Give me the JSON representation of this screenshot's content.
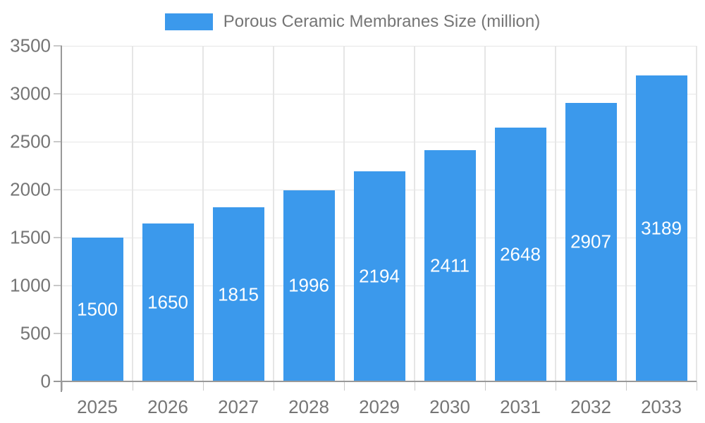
{
  "chart_data": {
    "type": "bar",
    "title": "Porous Ceramic Membranes Size (million)",
    "legend": {
      "label": "Porous Ceramic Membranes Size (million)",
      "position": "top"
    },
    "categories": [
      "2025",
      "2026",
      "2027",
      "2028",
      "2029",
      "2030",
      "2031",
      "2032",
      "2033"
    ],
    "values": [
      1500,
      1650,
      1815,
      1996,
      2194,
      2411,
      2648,
      2907,
      3189
    ],
    "value_labels": [
      "1500",
      "1650",
      "1815",
      "1996",
      "2194",
      "2411",
      "2648",
      "2907",
      "3189"
    ],
    "xlabel": "",
    "ylabel": "",
    "ylim": [
      0,
      3500
    ],
    "y_ticks": [
      0,
      500,
      1000,
      1500,
      2000,
      2500,
      3000,
      3500
    ],
    "grid": true,
    "colors": {
      "bar": "#3B99EC",
      "value_label": "#FFFFFF",
      "grid_line": "#E6E6E6",
      "axis_line": "#999999",
      "tick_mark": "#C9C9C9",
      "axis_text": "#757575",
      "background": "#FFFFFF"
    }
  }
}
